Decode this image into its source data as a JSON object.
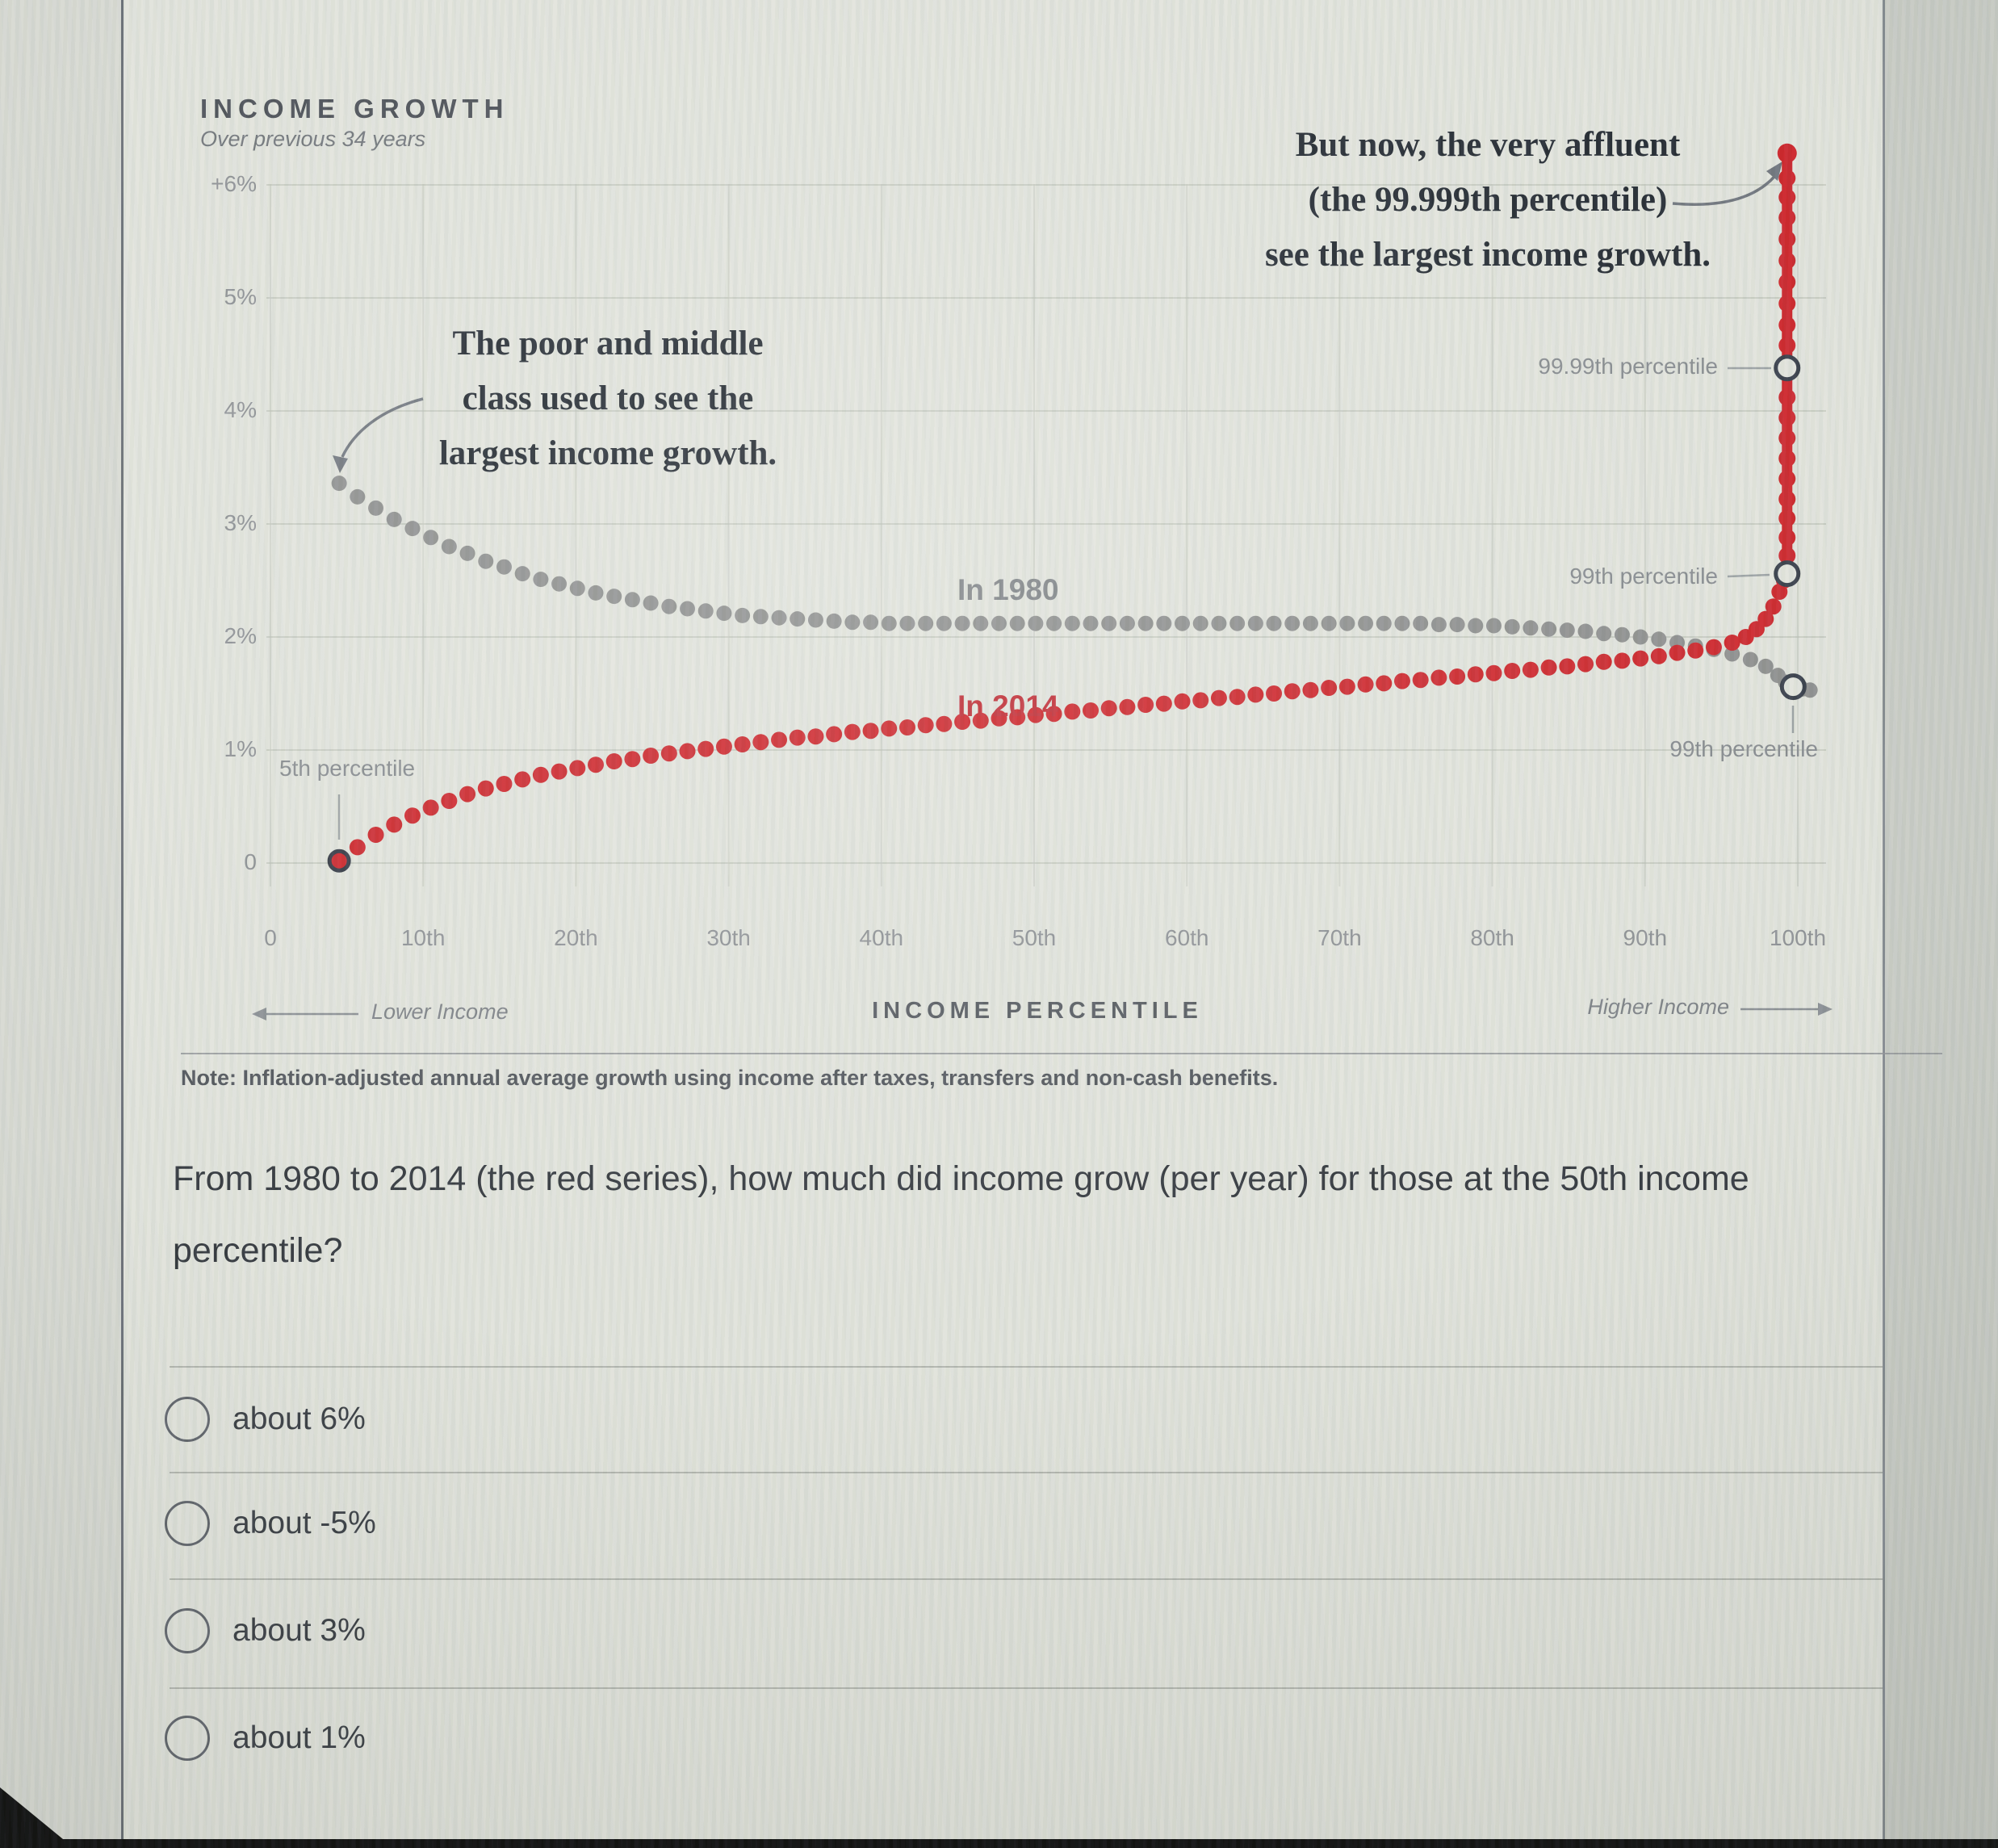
{
  "chart_data": {
    "type": "scatter",
    "title": "INCOME GROWTH",
    "subtitle": "Over previous 34 years",
    "note": "Note: Inflation-adjusted annual average growth using income after taxes, transfers and non-cash benefits.",
    "xlabel": "INCOME PERCENTILE",
    "x_direction": {
      "lower": "Lower Income",
      "higher": "Higher Income"
    },
    "xlim": [
      0,
      101
    ],
    "ylim": [
      -0.3,
      6.5
    ],
    "grid": true,
    "legend_position": "inline-labels",
    "x_ticks": [
      {
        "value": 0,
        "label": "0"
      },
      {
        "value": 10,
        "label": "10th"
      },
      {
        "value": 20,
        "label": "20th"
      },
      {
        "value": 30,
        "label": "30th"
      },
      {
        "value": 40,
        "label": "40th"
      },
      {
        "value": 50,
        "label": "50th"
      },
      {
        "value": 60,
        "label": "60th"
      },
      {
        "value": 70,
        "label": "70th"
      },
      {
        "value": 80,
        "label": "80th"
      },
      {
        "value": 90,
        "label": "90th"
      },
      {
        "value": 100,
        "label": "100th"
      }
    ],
    "y_ticks": [
      {
        "value": 6,
        "label": "+6%"
      },
      {
        "value": 5,
        "label": "5%"
      },
      {
        "value": 4,
        "label": "4%"
      },
      {
        "value": 3,
        "label": "3%"
      },
      {
        "value": 2,
        "label": "2%"
      },
      {
        "value": 1,
        "label": "1%"
      },
      {
        "value": 0,
        "label": "0"
      }
    ],
    "series": [
      {
        "name": "In 1980",
        "color": "#8c8d8c",
        "dot_radius": 9.5,
        "points": [
          [
            4.5,
            3.36
          ],
          [
            5.7,
            3.24
          ],
          [
            6.9,
            3.14
          ],
          [
            8.1,
            3.04
          ],
          [
            9.3,
            2.96
          ],
          [
            10.5,
            2.88
          ],
          [
            11.7,
            2.8
          ],
          [
            12.9,
            2.74
          ],
          [
            14.1,
            2.67
          ],
          [
            15.3,
            2.62
          ],
          [
            16.5,
            2.56
          ],
          [
            17.7,
            2.51
          ],
          [
            18.9,
            2.47
          ],
          [
            20.1,
            2.43
          ],
          [
            21.3,
            2.39
          ],
          [
            22.5,
            2.36
          ],
          [
            23.7,
            2.33
          ],
          [
            24.9,
            2.3
          ],
          [
            26.1,
            2.27
          ],
          [
            27.3,
            2.25
          ],
          [
            28.5,
            2.23
          ],
          [
            29.7,
            2.21
          ],
          [
            30.9,
            2.19
          ],
          [
            32.1,
            2.18
          ],
          [
            33.3,
            2.17
          ],
          [
            34.5,
            2.16
          ],
          [
            35.7,
            2.15
          ],
          [
            36.9,
            2.14
          ],
          [
            38.1,
            2.13
          ],
          [
            39.3,
            2.13
          ],
          [
            40.5,
            2.12
          ],
          [
            41.7,
            2.12
          ],
          [
            42.9,
            2.12
          ],
          [
            44.1,
            2.12
          ],
          [
            45.3,
            2.12
          ],
          [
            46.5,
            2.12
          ],
          [
            47.7,
            2.12
          ],
          [
            48.9,
            2.12
          ],
          [
            50.1,
            2.12
          ],
          [
            51.3,
            2.12
          ],
          [
            52.5,
            2.12
          ],
          [
            53.7,
            2.12
          ],
          [
            54.9,
            2.12
          ],
          [
            56.1,
            2.12
          ],
          [
            57.3,
            2.12
          ],
          [
            58.5,
            2.12
          ],
          [
            59.7,
            2.12
          ],
          [
            60.9,
            2.12
          ],
          [
            62.1,
            2.12
          ],
          [
            63.3,
            2.12
          ],
          [
            64.5,
            2.12
          ],
          [
            65.7,
            2.12
          ],
          [
            66.9,
            2.12
          ],
          [
            68.1,
            2.12
          ],
          [
            69.3,
            2.12
          ],
          [
            70.5,
            2.12
          ],
          [
            71.7,
            2.12
          ],
          [
            72.9,
            2.12
          ],
          [
            74.1,
            2.12
          ],
          [
            75.3,
            2.12
          ],
          [
            76.5,
            2.11
          ],
          [
            77.7,
            2.11
          ],
          [
            78.9,
            2.1
          ],
          [
            80.1,
            2.1
          ],
          [
            81.3,
            2.09
          ],
          [
            82.5,
            2.08
          ],
          [
            83.7,
            2.07
          ],
          [
            84.9,
            2.06
          ],
          [
            86.1,
            2.05
          ],
          [
            87.3,
            2.03
          ],
          [
            88.5,
            2.02
          ],
          [
            89.7,
            2.0
          ],
          [
            90.9,
            1.98
          ],
          [
            92.1,
            1.95
          ],
          [
            93.3,
            1.92
          ],
          [
            94.5,
            1.89
          ],
          [
            95.7,
            1.85
          ],
          [
            96.9,
            1.8
          ],
          [
            97.9,
            1.74
          ],
          [
            98.7,
            1.66
          ],
          [
            99.2,
            1.6
          ]
        ],
        "end_marker": {
          "x": 99.7,
          "y": 1.56,
          "label": "99th percentile"
        },
        "stub_points": [
          [
            100.3,
            1.54
          ],
          [
            100.8,
            1.53
          ]
        ]
      },
      {
        "name": "In 2014",
        "color": "#cc2127",
        "dot_radius": 10,
        "points": [
          [
            4.5,
            0.02
          ],
          [
            5.7,
            0.14
          ],
          [
            6.9,
            0.25
          ],
          [
            8.1,
            0.34
          ],
          [
            9.3,
            0.42
          ],
          [
            10.5,
            0.49
          ],
          [
            11.7,
            0.55
          ],
          [
            12.9,
            0.61
          ],
          [
            14.1,
            0.66
          ],
          [
            15.3,
            0.7
          ],
          [
            16.5,
            0.74
          ],
          [
            17.7,
            0.78
          ],
          [
            18.9,
            0.81
          ],
          [
            20.1,
            0.84
          ],
          [
            21.3,
            0.87
          ],
          [
            22.5,
            0.9
          ],
          [
            23.7,
            0.92
          ],
          [
            24.9,
            0.95
          ],
          [
            26.1,
            0.97
          ],
          [
            27.3,
            0.99
          ],
          [
            28.5,
            1.01
          ],
          [
            29.7,
            1.03
          ],
          [
            30.9,
            1.05
          ],
          [
            32.1,
            1.07
          ],
          [
            33.3,
            1.09
          ],
          [
            34.5,
            1.11
          ],
          [
            35.7,
            1.12
          ],
          [
            36.9,
            1.14
          ],
          [
            38.1,
            1.16
          ],
          [
            39.3,
            1.17
          ],
          [
            40.5,
            1.19
          ],
          [
            41.7,
            1.2
          ],
          [
            42.9,
            1.22
          ],
          [
            44.1,
            1.23
          ],
          [
            45.3,
            1.25
          ],
          [
            46.5,
            1.26
          ],
          [
            47.7,
            1.28
          ],
          [
            48.9,
            1.29
          ],
          [
            50.1,
            1.31
          ],
          [
            51.3,
            1.32
          ],
          [
            52.5,
            1.34
          ],
          [
            53.7,
            1.35
          ],
          [
            54.9,
            1.37
          ],
          [
            56.1,
            1.38
          ],
          [
            57.3,
            1.4
          ],
          [
            58.5,
            1.41
          ],
          [
            59.7,
            1.43
          ],
          [
            60.9,
            1.44
          ],
          [
            62.1,
            1.46
          ],
          [
            63.3,
            1.47
          ],
          [
            64.5,
            1.49
          ],
          [
            65.7,
            1.5
          ],
          [
            66.9,
            1.52
          ],
          [
            68.1,
            1.53
          ],
          [
            69.3,
            1.55
          ],
          [
            70.5,
            1.56
          ],
          [
            71.7,
            1.58
          ],
          [
            72.9,
            1.59
          ],
          [
            74.1,
            1.61
          ],
          [
            75.3,
            1.62
          ],
          [
            76.5,
            1.64
          ],
          [
            77.7,
            1.65
          ],
          [
            78.9,
            1.67
          ],
          [
            80.1,
            1.68
          ],
          [
            81.3,
            1.7
          ],
          [
            82.5,
            1.71
          ],
          [
            83.7,
            1.73
          ],
          [
            84.9,
            1.74
          ],
          [
            86.1,
            1.76
          ],
          [
            87.3,
            1.78
          ],
          [
            88.5,
            1.79
          ],
          [
            89.7,
            1.81
          ],
          [
            90.9,
            1.83
          ],
          [
            92.1,
            1.86
          ],
          [
            93.3,
            1.88
          ],
          [
            94.5,
            1.91
          ],
          [
            95.7,
            1.95
          ],
          [
            96.6,
            2.0
          ],
          [
            97.3,
            2.07
          ],
          [
            97.9,
            2.16
          ],
          [
            98.4,
            2.27
          ],
          [
            98.8,
            2.4
          ],
          [
            99.1,
            2.5
          ]
        ],
        "start_marker": {
          "x": 4.5,
          "y": 0.02,
          "label": "5th percentile"
        },
        "markers": [
          {
            "x": 99.3,
            "y": 2.56,
            "label": "99th percentile"
          },
          {
            "x": 99.3,
            "y": 4.38,
            "label": "99.99th percentile"
          }
        ],
        "spike": {
          "x": 99.3,
          "from": 2.62,
          "to": 6.28,
          "dot_values": [
            2.72,
            2.88,
            3.05,
            3.22,
            3.4,
            3.58,
            3.76,
            3.94,
            4.12,
            4.58,
            4.76,
            4.95,
            5.14,
            5.33,
            5.52,
            5.71,
            5.89,
            6.06
          ],
          "top_value": 6.28
        }
      }
    ],
    "annotations": {
      "left": "The poor and middle\nclass used to see the\nlargest income growth.",
      "right": "But now, the very affluent\n(the 99.999th percentile)\nsee the largest income growth."
    }
  },
  "labels": {
    "in_1980": "In 1980",
    "in_2014": "In 2014",
    "pct_5": "5th percentile",
    "pct_9999": "99.99th percentile",
    "pct_99_red": "99th percentile",
    "pct_99_gray": "99th percentile"
  },
  "question": {
    "text": "From 1980 to 2014 (the red series), how much did income grow (per year) for those at the 50th income percentile?"
  },
  "options": [
    {
      "label": "about 6%"
    },
    {
      "label": "about -5%"
    },
    {
      "label": "about 3%"
    },
    {
      "label": "about 1%"
    }
  ]
}
